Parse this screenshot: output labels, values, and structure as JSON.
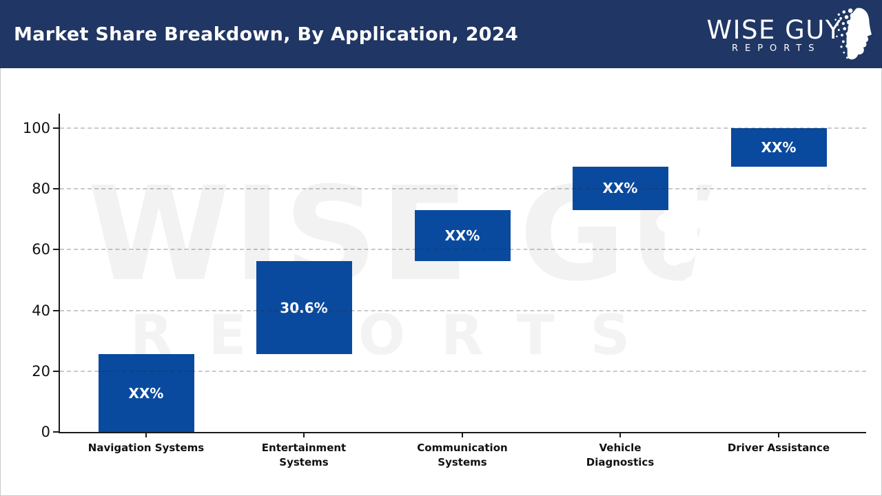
{
  "header": {
    "title": "Market Share Breakdown, By Application, 2024",
    "logo": {
      "line1": "WISE GUY",
      "line2": "REPORTS"
    }
  },
  "watermark": {
    "line1": "WISE GUY",
    "line2": "REPORTS"
  },
  "colors": {
    "header_bg": "#203664",
    "bar": "#0a4a9e",
    "bar_label": "#ffffff",
    "axis": "#1a1a1a",
    "watermark": "#f2f2f2"
  },
  "chart_data": {
    "type": "bar",
    "subtype": "waterfall-floating-bars",
    "title": "Market Share Breakdown, By Application, 2024",
    "categories": [
      [
        "Navigation Systems"
      ],
      [
        "Entertainment",
        "Systems"
      ],
      [
        "Communication",
        "Systems"
      ],
      [
        "Vehicle",
        "Diagnostics"
      ],
      [
        "Driver Assistance"
      ]
    ],
    "segments": [
      {
        "category": "Navigation Systems",
        "start": 0,
        "end": 25.6,
        "label": "XX%"
      },
      {
        "category": "Entertainment Systems",
        "start": 25.6,
        "end": 56.2,
        "label": "30.6%"
      },
      {
        "category": "Communication Systems",
        "start": 56.2,
        "end": 73.0,
        "label": "XX%"
      },
      {
        "category": "Vehicle Diagnostics",
        "start": 73.0,
        "end": 87.4,
        "label": "XX%"
      },
      {
        "category": "Driver Assistance",
        "start": 87.4,
        "end": 100,
        "label": "XX%"
      }
    ],
    "yticks": [
      0,
      20,
      40,
      60,
      80,
      100
    ],
    "ylim": [
      0,
      104
    ],
    "xlabel": "",
    "ylabel": "",
    "grid": "horizontal-dashed",
    "legend": "none",
    "bar_color": "#0a4a9e",
    "value_label_color": "#ffffff"
  }
}
